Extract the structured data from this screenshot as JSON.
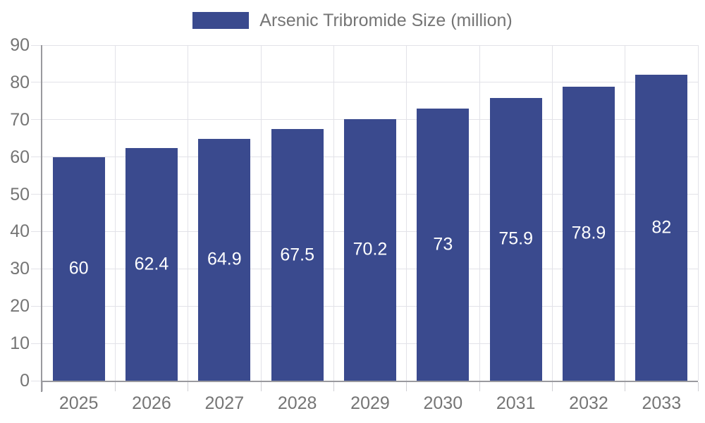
{
  "chart_data": {
    "type": "bar",
    "title": "Arsenic Tribromide Size (million)",
    "legend": [
      "Arsenic Tribromide Size (million)"
    ],
    "legend_position": "top",
    "categories": [
      "2025",
      "2026",
      "2027",
      "2028",
      "2029",
      "2030",
      "2031",
      "2032",
      "2033"
    ],
    "values": [
      60,
      62.4,
      64.9,
      67.5,
      70.2,
      73,
      75.9,
      78.9,
      82
    ],
    "xlabel": "",
    "ylabel": "",
    "ylim": [
      0,
      90
    ],
    "ytick_interval": 10,
    "yticks": [
      0,
      10,
      20,
      30,
      40,
      50,
      60,
      70,
      80,
      90
    ],
    "grid": true,
    "bar_labels_shown": true
  },
  "colors": {
    "background": "#ffffff",
    "bar": "#3A4A8E",
    "bar_label": "#ffffff",
    "gridline": "#e2e2e8",
    "tick": "#cfcfd4",
    "axis_line": "#9a9a9e",
    "tick_text": "#757575",
    "legend_text": "#757575"
  }
}
